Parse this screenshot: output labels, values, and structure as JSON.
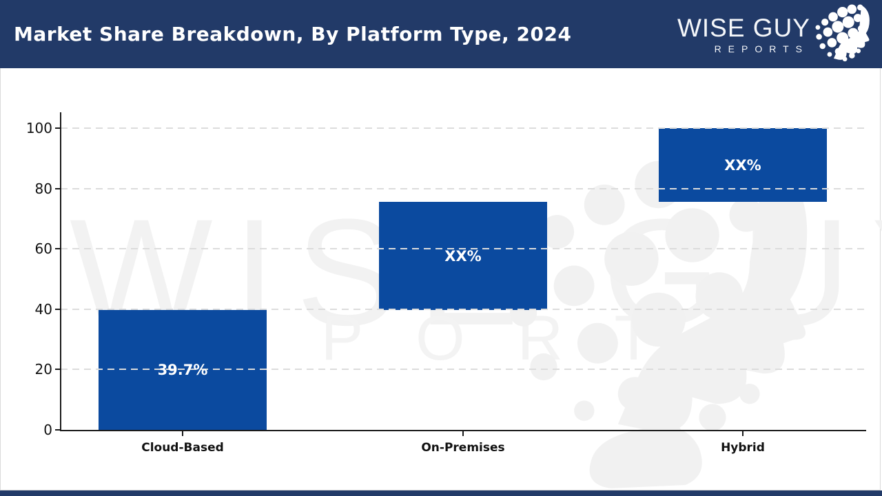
{
  "header": {
    "title": "Market Share Breakdown, By Platform Type, 2024",
    "logo": {
      "line1": "WISE GUY",
      "line2": "REPORTS"
    }
  },
  "watermark": {
    "line1": "WISE GUY",
    "line2": "REPORTS"
  },
  "colors": {
    "header_bg": "#223a68",
    "footer_bg": "#223a68",
    "bar": "#0b4a9f",
    "grid": "#dcdcdc",
    "axis": "#1a1a1a",
    "value_label": "#ffffff",
    "watermark": "#f2f2f2"
  },
  "chart_data": {
    "type": "bar",
    "subtype": "floating stacked segments (waterfall-style market share)",
    "title": "Market Share Breakdown, By Platform Type, 2024",
    "categories": [
      "Cloud-Based",
      "On-Premises",
      "Hybrid"
    ],
    "bars": [
      {
        "category": "Cloud-Based",
        "start": 0,
        "end": 39.7,
        "label": "39.7%"
      },
      {
        "category": "On-Premises",
        "start": 39.7,
        "end": 75.5,
        "label": "XX%"
      },
      {
        "category": "Hybrid",
        "start": 75.5,
        "end": 100,
        "label": "XX%"
      }
    ],
    "xlabel": "",
    "ylabel": "",
    "yticks": [
      0,
      20,
      40,
      60,
      80,
      100
    ],
    "ylim": [
      0,
      105
    ],
    "grid": true,
    "grid_style": "dashed horizontal, drawn above bars",
    "legend": false,
    "bar_color": "#0b4a9f"
  }
}
